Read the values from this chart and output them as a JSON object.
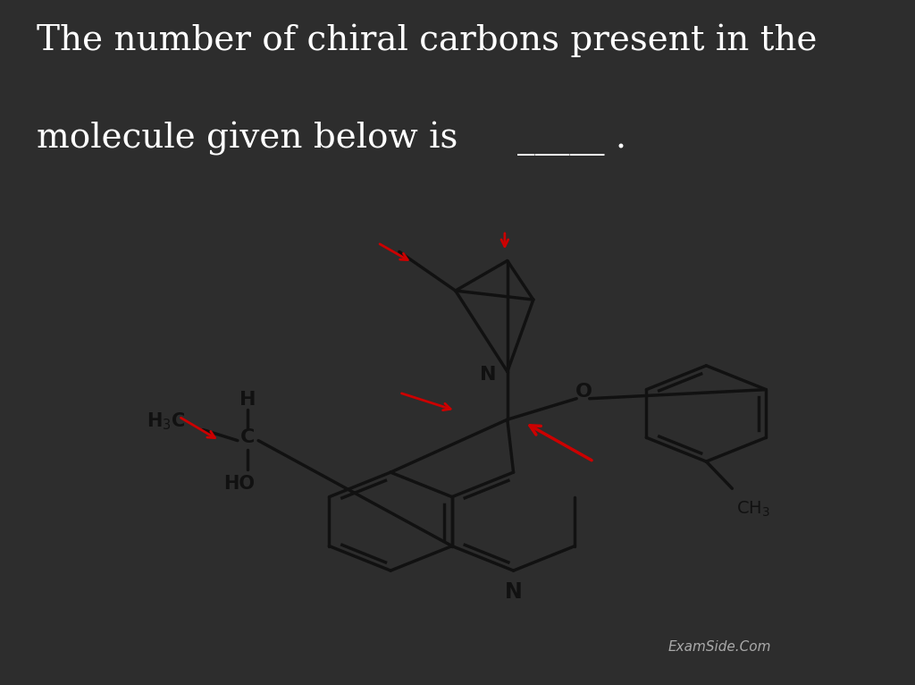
{
  "bg_color": "#2d2d2d",
  "text_color": "#ffffff",
  "title_line1": "The number of chiral carbons present in the",
  "title_line2": "molecule given below is       .",
  "title_fontsize": 28,
  "watermark": "ExamSide.Com",
  "arrow_color": "#cc0000",
  "line_color": "#111111",
  "label_color": "#111111"
}
